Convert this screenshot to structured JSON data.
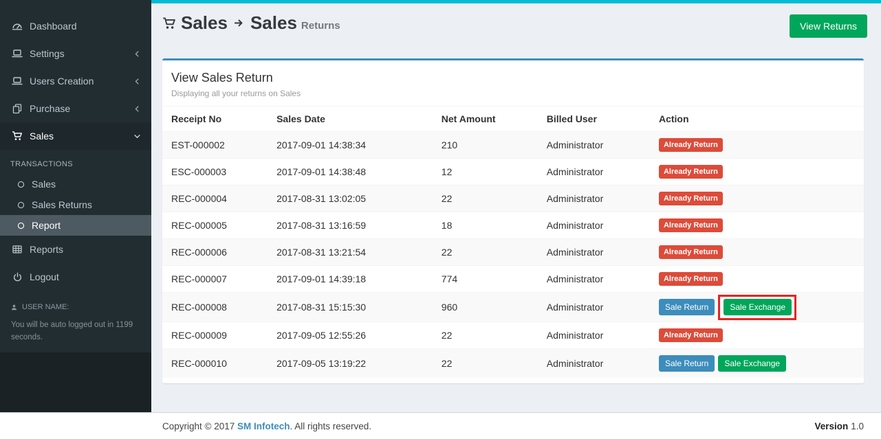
{
  "colors": {
    "accent_top_bar": "#00bcd4",
    "sidebar_bg": "#222d32",
    "sidebar_active_bg": "#1e282c",
    "primary_blue": "#3c8dbc",
    "success_green": "#00a65a",
    "danger_red": "#dd4b39",
    "content_bg": "#ecf0f5",
    "annotation_red": "#e32522"
  },
  "sidebar": {
    "items": [
      {
        "label": "Dashboard"
      },
      {
        "label": "Settings"
      },
      {
        "label": "Users Creation"
      },
      {
        "label": "Purchase"
      },
      {
        "label": "Sales"
      }
    ],
    "section_label": "TRANSACTIONS",
    "sub_items": [
      {
        "label": "Sales"
      },
      {
        "label": "Sales Returns"
      },
      {
        "label": "Report"
      }
    ],
    "reports_label": "Reports",
    "logout_label": "Logout",
    "user_label": "USER NAME:",
    "auto_logout_notice": "You will be auto logged out in 1199 seconds."
  },
  "header": {
    "title_main": "Sales",
    "title_to": "Sales",
    "title_sub": "Returns",
    "view_returns_button": "View Returns"
  },
  "panel": {
    "title": "View Sales Return",
    "subtitle": "Displaying all your returns on Sales"
  },
  "table": {
    "columns": [
      "Receipt No",
      "Sales Date",
      "Net Amount",
      "Billed User",
      "Action"
    ],
    "rows": [
      {
        "receipt": "EST-000002",
        "date": "2017-09-01 14:38:34",
        "amount": "210",
        "user": "Administrator",
        "actions": [
          {
            "label": "Already Return",
            "style": "danger",
            "name": "already-return-badge"
          }
        ]
      },
      {
        "receipt": "ESC-000003",
        "date": "2017-09-01 14:38:48",
        "amount": "12",
        "user": "Administrator",
        "actions": [
          {
            "label": "Already Return",
            "style": "danger",
            "name": "already-return-badge"
          }
        ]
      },
      {
        "receipt": "REC-000004",
        "date": "2017-08-31 13:02:05",
        "amount": "22",
        "user": "Administrator",
        "actions": [
          {
            "label": "Already Return",
            "style": "danger",
            "name": "already-return-badge"
          }
        ]
      },
      {
        "receipt": "REC-000005",
        "date": "2017-08-31 13:16:59",
        "amount": "18",
        "user": "Administrator",
        "actions": [
          {
            "label": "Already Return",
            "style": "danger",
            "name": "already-return-badge"
          }
        ]
      },
      {
        "receipt": "REC-000006",
        "date": "2017-08-31 13:21:54",
        "amount": "22",
        "user": "Administrator",
        "actions": [
          {
            "label": "Already Return",
            "style": "danger",
            "name": "already-return-badge"
          }
        ]
      },
      {
        "receipt": "REC-000007",
        "date": "2017-09-01 14:39:18",
        "amount": "774",
        "user": "Administrator",
        "actions": [
          {
            "label": "Already Return",
            "style": "danger",
            "name": "already-return-badge"
          }
        ]
      },
      {
        "receipt": "REC-000008",
        "date": "2017-08-31 15:15:30",
        "amount": "960",
        "user": "Administrator",
        "actions": [
          {
            "label": "Sale Return",
            "style": "primary",
            "name": "sale-return-button"
          },
          {
            "label": "Sale Exchange",
            "style": "success",
            "name": "sale-exchange-button",
            "highlighted": true
          }
        ]
      },
      {
        "receipt": "REC-000009",
        "date": "2017-09-05 12:55:26",
        "amount": "22",
        "user": "Administrator",
        "actions": [
          {
            "label": "Already Return",
            "style": "danger",
            "name": "already-return-badge"
          }
        ]
      },
      {
        "receipt": "REC-000010",
        "date": "2017-09-05 13:19:22",
        "amount": "22",
        "user": "Administrator",
        "actions": [
          {
            "label": "Sale Return",
            "style": "primary",
            "name": "sale-return-button"
          },
          {
            "label": "Sale Exchange",
            "style": "success",
            "name": "sale-exchange-button"
          }
        ]
      }
    ]
  },
  "footer": {
    "copyright_prefix": "Copyright © 2017 ",
    "company": "SM Infotech",
    "copyright_suffix": ". All rights reserved.",
    "version_label": "Version",
    "version_value": "1.0"
  }
}
